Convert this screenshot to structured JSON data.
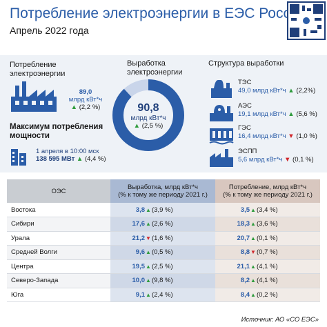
{
  "header": {
    "title": "Потребление электроэнергии в ЕЭС России",
    "subtitle": "Апрель 2022 года"
  },
  "consumption": {
    "label_line1": "Потребление",
    "label_line2": "электроэнергии",
    "value": "89,0",
    "unit": "млрд кВт*ч",
    "change": "(2,2 %)",
    "trend": "up"
  },
  "peak": {
    "label_line1": "Максимум потребления",
    "label_line2": "мощности",
    "date": "1 апреля в 10:00 мск",
    "value": "138 595 МВт",
    "change": "(4,4 %)",
    "trend": "up"
  },
  "generation": {
    "label_line1": "Выработка",
    "label_line2": "электроэнергии",
    "value": "90,8",
    "unit": "млрд кВт*ч",
    "change": "(2,5 %)",
    "trend": "up",
    "donut_color": "#2b5da8"
  },
  "structure": {
    "title": "Структура выработки",
    "items": [
      {
        "name": "ТЭС",
        "value": "49,0 млрд кВт*ч",
        "change": "(2,2%)",
        "trend": "up",
        "share": 49.0
      },
      {
        "name": "АЭС",
        "value": "19,1 млрд кВт*ч",
        "change": "(5,6 %)",
        "trend": "up",
        "share": 19.1
      },
      {
        "name": "ГЭС",
        "value": "16,4 млрд кВт*ч",
        "change": "(1,0 %)",
        "trend": "down",
        "share": 16.4
      },
      {
        "name": "ЭСПП",
        "value": "5,6 млрд кВт*ч",
        "change": "(0,1 %)",
        "trend": "down",
        "share": 5.6
      }
    ]
  },
  "table": {
    "col1": "ОЭС",
    "col2_line1": "Выработка, млрд кВт*ч",
    "col2_line2": "(% к тому же периоду 2021 г.)",
    "col3_line1": "Потребление, млрд кВт*ч",
    "col3_line2": "(% к тому же периоду 2021 г.)",
    "rows": [
      {
        "name": "Востока",
        "gen": "3,8",
        "gen_trend": "up",
        "gen_pct": "(3,9 %)",
        "cons": "3,5",
        "cons_trend": "up",
        "cons_pct": "(3,4 %)"
      },
      {
        "name": "Сибири",
        "gen": "17,6",
        "gen_trend": "up",
        "gen_pct": "(2,6 %)",
        "cons": "18,3",
        "cons_trend": "up",
        "cons_pct": "(3,6 %)"
      },
      {
        "name": "Урала",
        "gen": "21,2",
        "gen_trend": "down",
        "gen_pct": "(1,6 %)",
        "cons": "20,7",
        "cons_trend": "up",
        "cons_pct": "(0,1 %)"
      },
      {
        "name": "Средней Волги",
        "gen": "9,6",
        "gen_trend": "up",
        "gen_pct": "(0,5 %)",
        "cons": "8,8",
        "cons_trend": "down",
        "cons_pct": "(0,7 %)"
      },
      {
        "name": "Центра",
        "gen": "19,5",
        "gen_trend": "up",
        "gen_pct": "(2,5 %)",
        "cons": "21,1",
        "cons_trend": "up",
        "cons_pct": "(4,1 %)"
      },
      {
        "name": "Северо-Запада",
        "gen": "10,0",
        "gen_trend": "up",
        "gen_pct": "(9,8 %)",
        "cons": "8,2",
        "cons_trend": "up",
        "cons_pct": "(4,1 %)"
      },
      {
        "name": "Юга",
        "gen": "9,1",
        "gen_trend": "up",
        "gen_pct": "(2,4 %)",
        "cons": "8,4",
        "cons_trend": "up",
        "cons_pct": "(0,2 %)"
      }
    ]
  },
  "source": "Источник: АО «СО ЕЭС»",
  "colors": {
    "accent": "#2b5da8",
    "up": "#2e9b3c",
    "down": "#d0262b"
  }
}
